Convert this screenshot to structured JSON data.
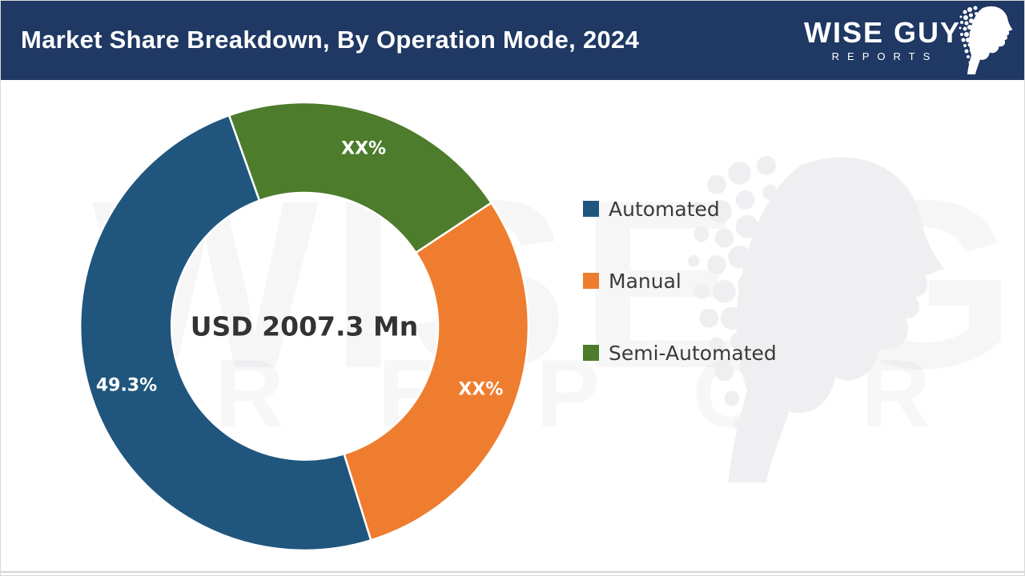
{
  "header": {
    "title": "Market Share Breakdown, By Operation Mode, 2024",
    "logo": {
      "line1": "WISE GUY",
      "line2": "REPORTS"
    }
  },
  "chart_data": {
    "type": "pie",
    "subtype": "donut",
    "title": "Market Share Breakdown, By Operation Mode, 2024",
    "center_label": "USD 2007.3 Mn",
    "legend_position": "right",
    "categories": [
      "Automated",
      "Manual",
      "Semi-Automated"
    ],
    "slices": [
      {
        "name": "Automated",
        "display_label": "49.3%",
        "value_pct_shown": 49.3,
        "approx_pct_from_geometry": 49.4,
        "color": "#20567D",
        "start_deg": 109.6,
        "end_deg": 287.3
      },
      {
        "name": "Manual",
        "display_label": "XX%",
        "value_pct_shown": null,
        "approx_pct_from_geometry": 29.5,
        "color": "#EF7D2F",
        "start_deg": 287.3,
        "end_deg": 393.5
      },
      {
        "name": "Semi-Automated",
        "display_label": "XX%",
        "value_pct_shown": null,
        "approx_pct_from_geometry": 21.1,
        "color": "#4C7C2C",
        "start_deg": 33.5,
        "end_deg": 109.6
      }
    ]
  },
  "watermark": {
    "big_text": "WISE GUY",
    "small_text": "R E P O R T S"
  }
}
